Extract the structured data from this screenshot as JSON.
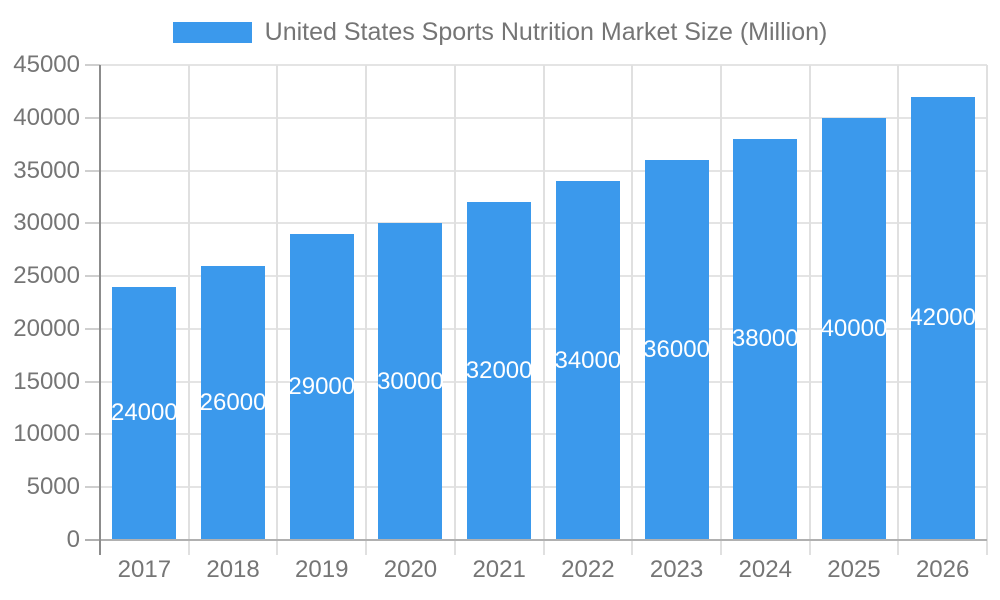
{
  "chart_data": {
    "type": "bar",
    "title": "United States Sports Nutrition Market Size (Million)",
    "legend_position": "top",
    "categories": [
      "2017",
      "2018",
      "2019",
      "2020",
      "2021",
      "2022",
      "2023",
      "2024",
      "2025",
      "2026"
    ],
    "series": [
      {
        "name": "United States Sports Nutrition Market Size (Million)",
        "values": [
          24000,
          26000,
          29000,
          30000,
          32000,
          34000,
          36000,
          38000,
          40000,
          42000
        ]
      }
    ],
    "xlabel": "",
    "ylabel": "",
    "ylim": [
      0,
      45000
    ],
    "ytick_step": 5000,
    "yticks": [
      0,
      5000,
      10000,
      15000,
      20000,
      25000,
      30000,
      35000,
      40000,
      45000
    ],
    "grid": "horizontal and vertical light-gray gridlines on",
    "value_labels": {
      "position": "inside-center",
      "color": "#ffffff"
    },
    "colors": {
      "bar": "#3B99EC",
      "grid": "#E4E4E4",
      "vertical_grid": "#E0E0E0",
      "y_tick": "#CFCFCF",
      "x_axis_line": "#B0B0B0",
      "y_axis_line": "#8C8C8C",
      "tick_label_text": "#757575",
      "legend_text": "#757575",
      "background": "#FFFFFF"
    }
  }
}
